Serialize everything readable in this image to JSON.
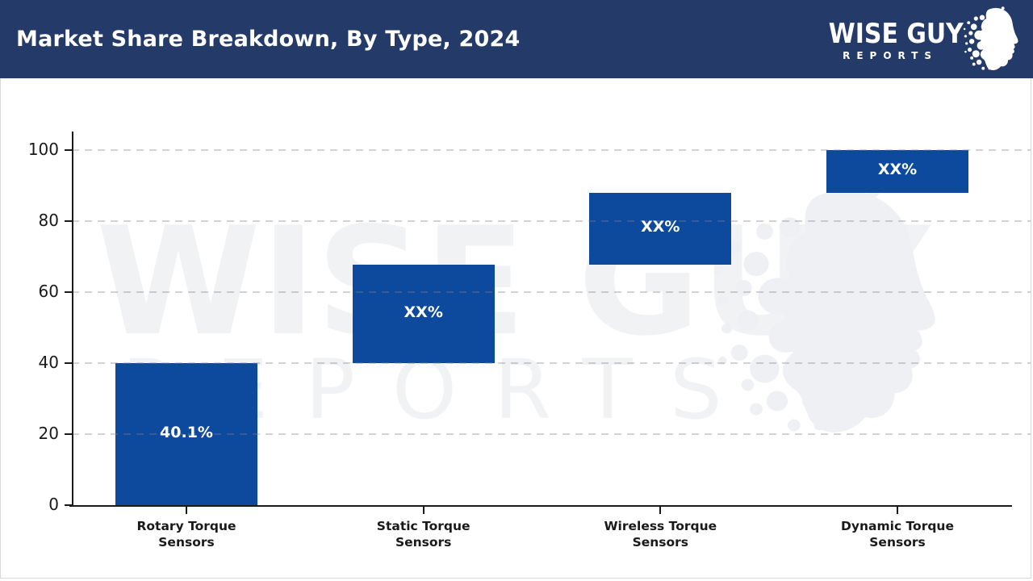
{
  "header": {
    "title": "Market Share Breakdown, By Type, 2024",
    "logo": {
      "name": "WISE GUY",
      "subtitle": "REPORTS"
    }
  },
  "watermark": {
    "line1": "WISE GUY",
    "line2": "REPORTS"
  },
  "colors": {
    "header_bg": "#243a68",
    "bar": "#0d4a9e",
    "title_text": "#ffffff",
    "gridline": "rgba(128,128,128,0.35)",
    "axis": "#1a1a1a",
    "watermark": "#eef0f4"
  },
  "chart_data": {
    "type": "bar",
    "style": "waterfall-floating-segments",
    "title": "Market Share Breakdown, By Type, 2024",
    "categories": [
      "Rotary Torque\nSensors",
      "Static Torque\nSensors",
      "Wireless Torque\nSensors",
      "Dynamic Torque\nSensors"
    ],
    "segments": [
      {
        "category": "Rotary Torque Sensors",
        "start": 0,
        "end": 40.1,
        "label": "40.1%"
      },
      {
        "category": "Static Torque Sensors",
        "start": 40.1,
        "end": 67.7,
        "label": "XX%"
      },
      {
        "category": "Wireless Torque Sensors",
        "start": 67.7,
        "end": 88.0,
        "label": "XX%"
      },
      {
        "category": "Dynamic Torque Sensors",
        "start": 88.0,
        "end": 100,
        "label": "XX%"
      }
    ],
    "yticks": [
      0,
      20,
      40,
      60,
      80,
      100
    ],
    "ylim": [
      0,
      105
    ],
    "xlabel": "",
    "ylabel": "",
    "grid": "horizontal dashed, drawn over bars",
    "legend": "none"
  }
}
